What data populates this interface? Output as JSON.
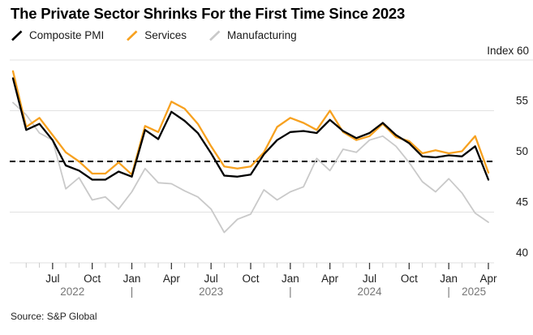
{
  "header": {
    "title": "The Private Sector Shrinks For the First Time Since 2023"
  },
  "legend": {
    "items": [
      {
        "label": "Composite PMI",
        "color": "#000000"
      },
      {
        "label": "Services",
        "color": "#F7A11F"
      },
      {
        "label": "Manufacturing",
        "color": "#C9C9C9"
      }
    ]
  },
  "y_axis_top_label": "Index 60",
  "footer": {
    "source": "Source: S&P Global"
  },
  "colors": {
    "gridline": "#E2E2E2",
    "reference_line": "#000000",
    "minor_tick": "#C9C9C9",
    "major_tick": "#3A3A3A",
    "month_label": "#1F1F1F",
    "year_label": "#767676",
    "y_label": "#1A1A1A"
  },
  "chart_data": {
    "type": "line",
    "title": "The Private Sector Shrinks For the First Time Since 2023",
    "source": "Source: S&P Global",
    "x_unit": "month",
    "categories": [
      "2022-04",
      "2022-05",
      "2022-06",
      "2022-07",
      "2022-08",
      "2022-09",
      "2022-10",
      "2022-11",
      "2022-12",
      "2023-01",
      "2023-02",
      "2023-03",
      "2023-04",
      "2023-05",
      "2023-06",
      "2023-07",
      "2023-08",
      "2023-09",
      "2023-10",
      "2023-11",
      "2023-12",
      "2024-01",
      "2024-02",
      "2024-03",
      "2024-04",
      "2024-05",
      "2024-06",
      "2024-07",
      "2024-08",
      "2024-09",
      "2024-10",
      "2024-11",
      "2024-12",
      "2025-01",
      "2025-02",
      "2025-03",
      "2025-04"
    ],
    "series": [
      {
        "name": "Composite PMI",
        "color": "#000000",
        "values": [
          58.2,
          53.1,
          53.7,
          52.1,
          49.6,
          49.1,
          48.2,
          48.2,
          49.0,
          48.5,
          53.1,
          52.2,
          54.9,
          54.0,
          52.8,
          50.8,
          48.6,
          48.5,
          48.7,
          50.7,
          52.1,
          52.9,
          53.0,
          52.8,
          54.1,
          53.0,
          52.3,
          52.8,
          53.8,
          52.6,
          51.8,
          50.5,
          50.4,
          50.6,
          50.5,
          51.5,
          48.2
        ]
      },
      {
        "name": "Services",
        "color": "#F7A11F",
        "values": [
          58.9,
          53.4,
          54.3,
          52.6,
          50.9,
          50.0,
          48.8,
          48.8,
          49.9,
          48.7,
          53.5,
          52.9,
          55.9,
          55.2,
          53.7,
          51.5,
          49.5,
          49.3,
          49.5,
          50.9,
          53.4,
          54.3,
          53.8,
          53.1,
          55.0,
          52.9,
          52.1,
          52.5,
          53.7,
          52.4,
          52.0,
          50.8,
          51.1,
          50.8,
          51.0,
          52.5,
          48.9
        ]
      },
      {
        "name": "Manufacturing",
        "color": "#C9C9C9",
        "values": [
          55.8,
          54.6,
          52.8,
          52.1,
          47.3,
          48.4,
          46.2,
          46.5,
          45.3,
          47.0,
          49.3,
          47.9,
          47.8,
          47.1,
          46.5,
          45.3,
          43.0,
          44.3,
          44.8,
          47.2,
          46.2,
          47.0,
          47.5,
          50.3,
          49.1,
          51.2,
          50.9,
          52.1,
          52.5,
          51.5,
          49.9,
          48.0,
          47.0,
          48.3,
          46.9,
          44.9,
          44.0
        ]
      }
    ],
    "ylim": [
      40,
      60
    ],
    "y_ticks": [
      40,
      45,
      50,
      55,
      60
    ],
    "y_axis_label": "Index 60",
    "reference_line": 50,
    "x_tick_labels": [
      "Jul",
      "Oct",
      "Jan",
      "Apr",
      "Jul",
      "Oct",
      "Jan",
      "Apr",
      "Jul",
      "Oct",
      "Jan",
      "Apr"
    ],
    "year_labels": [
      "2022",
      "2023",
      "2024",
      "2025"
    ],
    "year_separator": "|",
    "grid": "horizontal",
    "legend_position": "top-left"
  }
}
